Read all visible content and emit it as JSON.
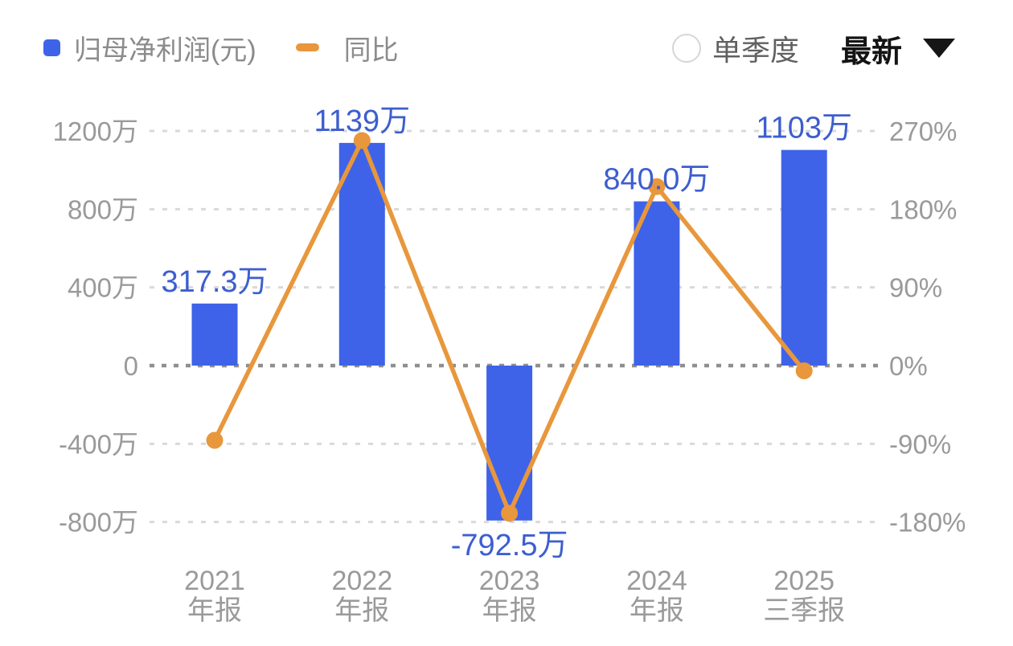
{
  "legend": {
    "items": [
      {
        "label": "归母净利润(元)",
        "swatch": "square",
        "color": "#3E63E8"
      },
      {
        "label": "同比",
        "swatch": "dash",
        "color": "#E8973C"
      }
    ]
  },
  "controls": {
    "radio_label": "单季度",
    "radio_checked": false,
    "period_select_value": "最新"
  },
  "chart_data": {
    "type": "bar",
    "subtype": "bar+line-dual-axis",
    "categories": [
      {
        "year": "2021",
        "period": "年报"
      },
      {
        "year": "2022",
        "period": "年报"
      },
      {
        "year": "2023",
        "period": "年报"
      },
      {
        "year": "2024",
        "period": "年报"
      },
      {
        "year": "2025",
        "period": "三季报"
      }
    ],
    "series": [
      {
        "name": "归母净利润(元)",
        "type": "bar",
        "axis": "left",
        "unit": "万",
        "values": [
          317.3,
          1139,
          -792.5,
          840.0,
          1103
        ],
        "value_labels": [
          "317.3万",
          "1139万",
          "-792.5万",
          "840.0万",
          "1103万"
        ],
        "color": "#3E63E8",
        "label_color": "#3D5ECF"
      },
      {
        "name": "同比",
        "type": "line",
        "axis": "right",
        "unit": "%",
        "values": [
          -86,
          259,
          -170,
          206,
          -6
        ],
        "values_note": "estimated from gridlines, not labeled on chart",
        "color": "#E8973C"
      }
    ],
    "left_axis": {
      "tick_labels": [
        "1200万",
        "800万",
        "400万",
        "0",
        "-400万",
        "-800万"
      ],
      "tick_values": [
        1200,
        800,
        400,
        0,
        -400,
        -800
      ],
      "range": [
        -800,
        1200
      ]
    },
    "right_axis": {
      "tick_labels": [
        "270%",
        "180%",
        "90%",
        "0%",
        "-90%",
        "-180%"
      ],
      "tick_values": [
        270,
        180,
        90,
        0,
        -90,
        -180
      ],
      "range": [
        -180,
        270
      ]
    },
    "grid": true,
    "legend_position": "top-left",
    "colors": {
      "grid_light": "#d9d9d9",
      "grid_zero": "#8f8f8f",
      "axis_text": "#9a9a9a",
      "category_text": "#9a9a9a"
    }
  }
}
